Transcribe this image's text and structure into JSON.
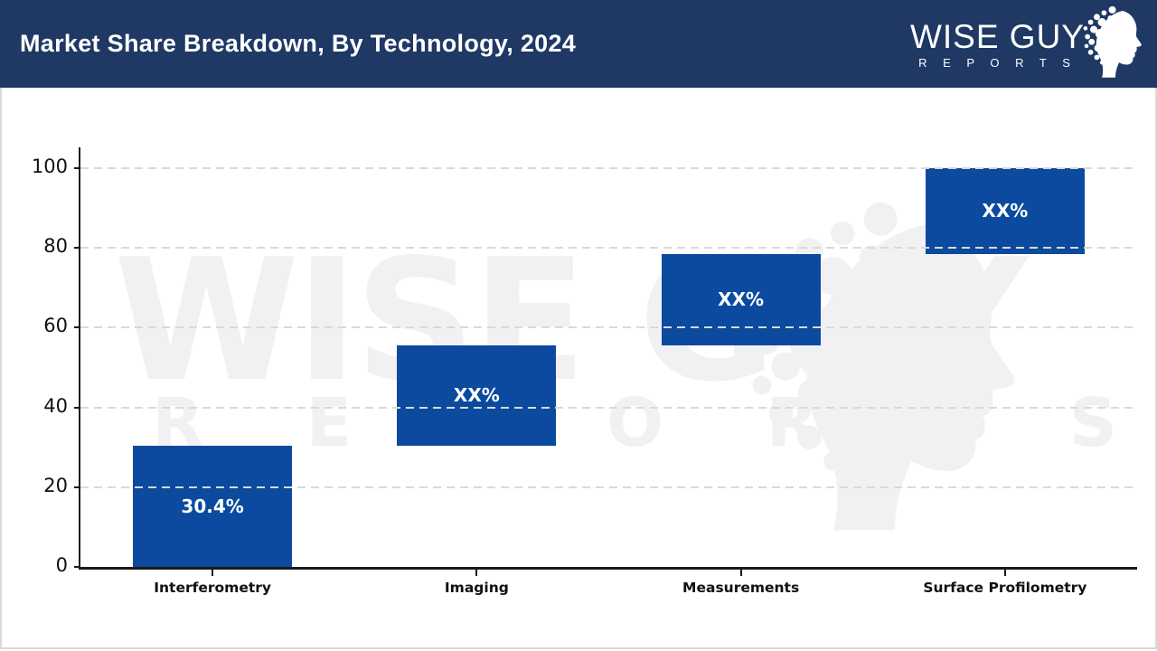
{
  "header": {
    "title": "Market Share Breakdown, By Technology, 2024",
    "logo": {
      "line1": "WISE GUY",
      "line2": "R E P O R T S"
    }
  },
  "watermark": {
    "line1": "WISE GUY",
    "line2": "R E P O R T S"
  },
  "colors": {
    "header_bg": "#1f3864",
    "bar": "#0b4a9e",
    "grid": "#d9d9d9",
    "bar_label": "#ffffff",
    "watermark": "#f1f1f4",
    "axis": "#1a1a1a"
  },
  "chart_data": {
    "type": "bar",
    "subtype": "waterfall",
    "title": "Market Share Breakdown, By Technology, 2024",
    "categories": [
      "Interferometry",
      "Imaging",
      "Measurements",
      "Surface Profilometry"
    ],
    "segments": [
      {
        "category": "Interferometry",
        "start": 0,
        "end": 30.4,
        "label": "30.4%"
      },
      {
        "category": "Imaging",
        "start": 30.4,
        "end": 55.6,
        "label": "XX%"
      },
      {
        "category": "Measurements",
        "start": 55.6,
        "end": 78.5,
        "label": "XX%"
      },
      {
        "category": "Surface Profilometry",
        "start": 78.5,
        "end": 100,
        "label": "XX%"
      }
    ],
    "xlabel": "",
    "ylabel": "",
    "ylim": [
      0,
      100
    ],
    "yticks": [
      0,
      20,
      40,
      60,
      80,
      100
    ],
    "grid": "horizontal-dashed",
    "legend": "none"
  }
}
